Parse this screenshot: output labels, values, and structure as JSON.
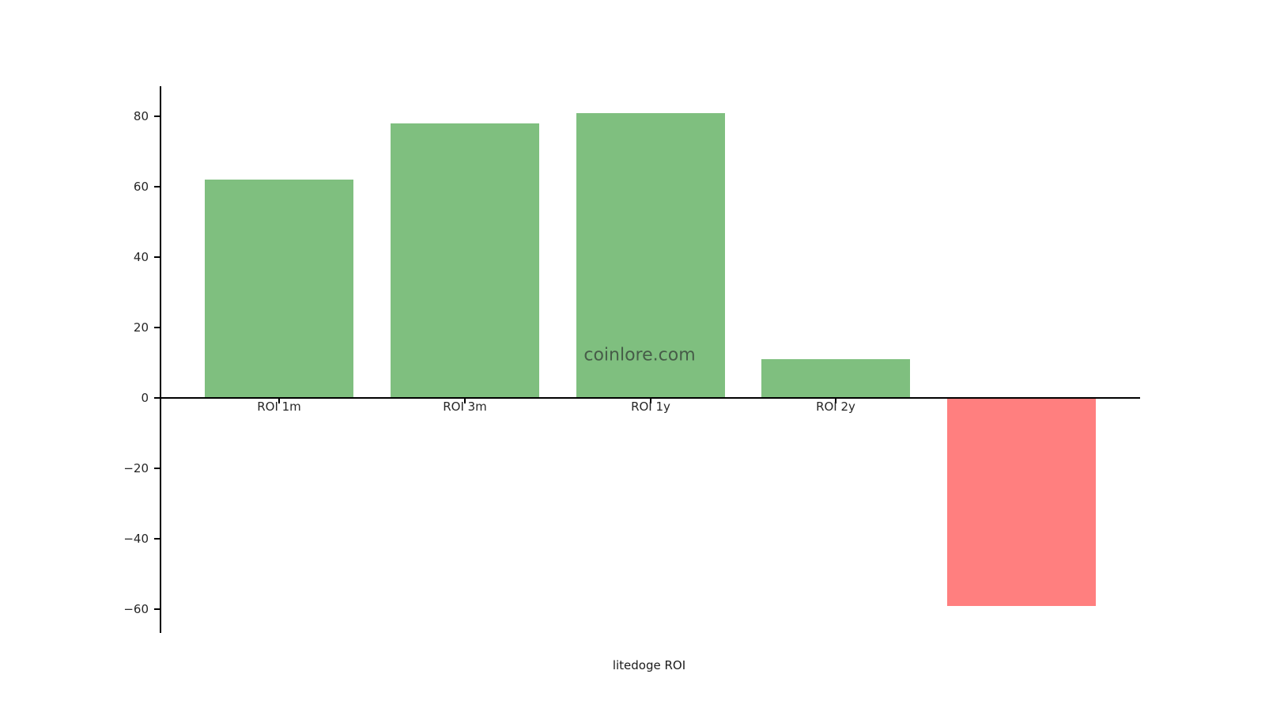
{
  "watermark": {
    "text": "coinlore.com",
    "color": "#3f4f41"
  },
  "chart_data": {
    "type": "bar",
    "title": "",
    "xlabel": "litedoge ROI",
    "ylabel": "",
    "categories": [
      "ROI 1m",
      "ROI 3m",
      "ROI 1y",
      "ROI 2y",
      ""
    ],
    "values": [
      62,
      78,
      81,
      11,
      -59
    ],
    "bar_colors": [
      "#7fbf7f",
      "#7fbf7f",
      "#7fbf7f",
      "#7fbf7f",
      "#ff7f7f"
    ],
    "positive_color": "#7fbf7f",
    "negative_color": "#ff7f7f",
    "yticks": [
      80,
      60,
      40,
      20,
      0,
      -20,
      -40,
      -60
    ],
    "ylim": [
      -66,
      88
    ],
    "grid": false,
    "legend_position": "none",
    "axis_color": "#000000",
    "tick_label_color": "#262626",
    "watermark": "coinlore.com"
  }
}
